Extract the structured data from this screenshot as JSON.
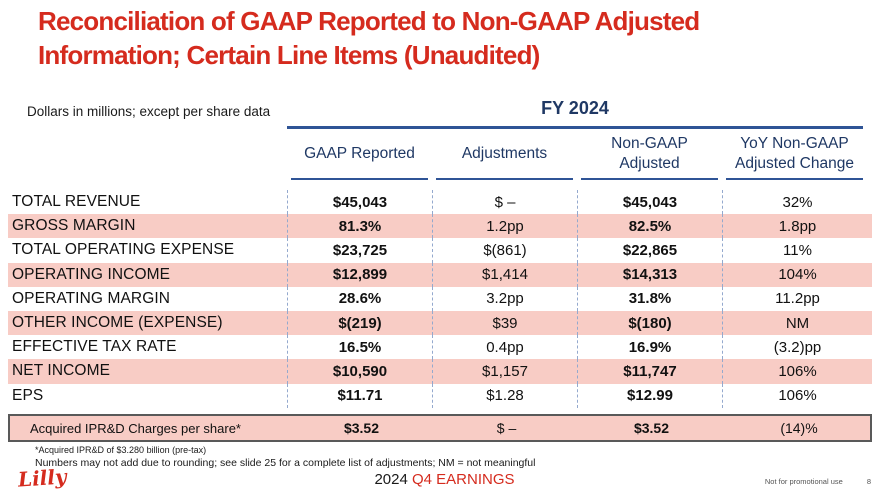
{
  "title": "Reconciliation of GAAP Reported to Non-GAAP Adjusted Information; Certain Line Items (Unaudited)",
  "subtitle": "Dollars in millions; except per share data",
  "table": {
    "period_header": "FY 2024",
    "columns": [
      "GAAP Reported",
      "Adjustments",
      "Non-GAAP Adjusted",
      "YoY Non-GAAP Adjusted Change"
    ],
    "rows": [
      {
        "label": "TOTAL REVENUE",
        "gaap": "$45,043",
        "adjustments": "$ –",
        "non_gaap": "$45,043",
        "yoy": "32%"
      },
      {
        "label": "GROSS MARGIN",
        "gaap": "81.3%",
        "adjustments": "1.2pp",
        "non_gaap": "82.5%",
        "yoy": "1.8pp"
      },
      {
        "label": "TOTAL OPERATING EXPENSE",
        "gaap": "$23,725",
        "adjustments": "$(861)",
        "non_gaap": "$22,865",
        "yoy": "11%"
      },
      {
        "label": "OPERATING INCOME",
        "gaap": "$12,899",
        "adjustments": "$1,414",
        "non_gaap": "$14,313",
        "yoy": "104%"
      },
      {
        "label": "OPERATING MARGIN",
        "gaap": "28.6%",
        "adjustments": "3.2pp",
        "non_gaap": "31.8%",
        "yoy": "11.2pp"
      },
      {
        "label": "OTHER INCOME (EXPENSE)",
        "gaap": "$(219)",
        "adjustments": "$39",
        "non_gaap": "$(180)",
        "yoy": "NM"
      },
      {
        "label": "EFFECTIVE TAX RATE",
        "gaap": "16.5%",
        "adjustments": "0.4pp",
        "non_gaap": "16.9%",
        "yoy": "(3.2)pp"
      },
      {
        "label": "NET INCOME",
        "gaap": "$10,590",
        "adjustments": "$1,157",
        "non_gaap": "$11,747",
        "yoy": "106%"
      },
      {
        "label": "EPS",
        "gaap": "$11.71",
        "adjustments": "$1.28",
        "non_gaap": "$12.99",
        "yoy": "106%"
      }
    ],
    "highlight_row": {
      "label": "Acquired IPR&D Charges per share*",
      "gaap": "$3.52",
      "adjustments": "$ –",
      "non_gaap": "$3.52",
      "yoy": "(14)%"
    }
  },
  "footnotes": [
    "*Acquired IPR&D of $3.280 billion (pre-tax)",
    "Numbers may not add due to rounding; see slide 25 for a complete list of adjustments; NM = not meaningful"
  ],
  "footer": {
    "logo": "Lilly",
    "event_year": "2024",
    "event_name": "Q4 EARNINGS",
    "right_note": "Not for promotional use",
    "page_number": "8"
  },
  "colors": {
    "accent_red": "#D52B1E",
    "navy_text": "#1F3864",
    "line_blue": "#2F5496",
    "row_pink": "#F8CCC5"
  }
}
